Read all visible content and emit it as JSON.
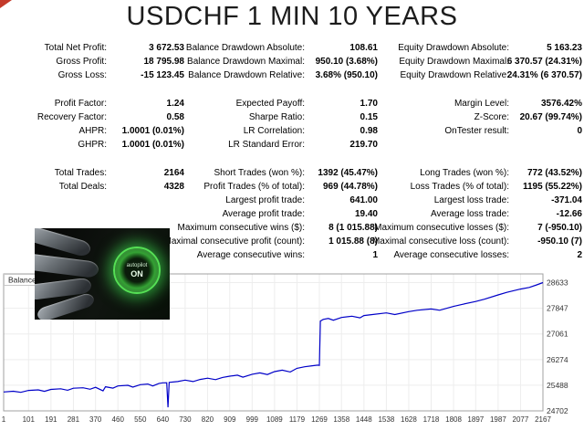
{
  "title": "USDCHF 1 MIN 10 YEARS",
  "photo": {
    "line1": "autopilot",
    "line2": "ON"
  },
  "stats": {
    "groups": [
      {
        "rows": [
          [
            "Total Net Profit:",
            "3 672.53",
            "Balance Drawdown Absolute:",
            "108.61",
            "Equity Drawdown Absolute:",
            "5 163.23"
          ],
          [
            "Gross Profit:",
            "18 795.98",
            "Balance Drawdown Maximal:",
            "950.10 (3.68%)",
            "Equity Drawdown Maximal:",
            "6 370.57 (24.31%)"
          ],
          [
            "Gross Loss:",
            "-15 123.45",
            "Balance Drawdown Relative:",
            "3.68% (950.10)",
            "Equity Drawdown Relative:",
            "24.31% (6 370.57)"
          ]
        ]
      },
      {
        "rows": [
          [
            "Profit Factor:",
            "1.24",
            "Expected Payoff:",
            "1.70",
            "Margin Level:",
            "3576.42%"
          ],
          [
            "Recovery Factor:",
            "0.58",
            "Sharpe Ratio:",
            "0.15",
            "Z-Score:",
            "20.67 (99.74%)"
          ],
          [
            "AHPR:",
            "1.0001 (0.01%)",
            "LR Correlation:",
            "0.98",
            "OnTester result:",
            "0"
          ],
          [
            "GHPR:",
            "1.0001 (0.01%)",
            "LR Standard Error:",
            "219.70",
            "",
            ""
          ]
        ]
      },
      {
        "rows": [
          [
            "Total Trades:",
            "2164",
            "Short Trades (won %):",
            "1392 (45.47%)",
            "Long Trades (won %):",
            "772 (43.52%)"
          ],
          [
            "Total Deals:",
            "4328",
            "Profit Trades (% of total):",
            "969 (44.78%)",
            "Loss Trades (% of total):",
            "1195 (55.22%)"
          ],
          [
            "",
            "",
            "Largest profit trade:",
            "641.00",
            "Largest loss trade:",
            "-371.04"
          ],
          [
            "",
            "",
            "Average profit trade:",
            "19.40",
            "Average loss trade:",
            "-12.66"
          ],
          [
            "",
            "",
            "Maximum consecutive wins ($):",
            "8 (1 015.88)",
            "Maximum consecutive losses ($):",
            "7 (-950.10)"
          ],
          [
            "",
            "",
            "Maximal consecutive profit (count):",
            "1 015.88 (8)",
            "Maximal consecutive loss (count):",
            "-950.10 (7)"
          ],
          [
            "",
            "",
            "Average consecutive wins:",
            "1",
            "Average consecutive losses:",
            "2"
          ]
        ]
      }
    ]
  },
  "chart_data": {
    "type": "line",
    "title": "",
    "legend": "Balance",
    "line_color": "#0000c8",
    "grid_color": "#ededed",
    "border_color": "#a0a0a0",
    "xlim": [
      1,
      2167
    ],
    "ylim": [
      24702,
      28900
    ],
    "x_ticks": [
      "1",
      "101",
      "191",
      "281",
      "370",
      "460",
      "550",
      "640",
      "730",
      "820",
      "909",
      "999",
      "1089",
      "1179",
      "1269",
      "1358",
      "1448",
      "1538",
      "1628",
      "1718",
      "1808",
      "1897",
      "1987",
      "2077",
      "2167"
    ],
    "y_ticks": [
      "28633",
      "27847",
      "27061",
      "26274",
      "25488",
      "24702"
    ],
    "points": [
      [
        1,
        25280
      ],
      [
        40,
        25305
      ],
      [
        70,
        25270
      ],
      [
        101,
        25330
      ],
      [
        140,
        25345
      ],
      [
        165,
        25300
      ],
      [
        191,
        25360
      ],
      [
        230,
        25380
      ],
      [
        258,
        25335
      ],
      [
        281,
        25395
      ],
      [
        320,
        25410
      ],
      [
        348,
        25365
      ],
      [
        370,
        25425
      ],
      [
        400,
        25315
      ],
      [
        410,
        25440
      ],
      [
        440,
        25400
      ],
      [
        460,
        25465
      ],
      [
        500,
        25485
      ],
      [
        520,
        25430
      ],
      [
        550,
        25505
      ],
      [
        580,
        25525
      ],
      [
        600,
        25465
      ],
      [
        625,
        25545
      ],
      [
        640,
        25560
      ],
      [
        656,
        25565
      ],
      [
        661,
        24810
      ],
      [
        666,
        25575
      ],
      [
        700,
        25600
      ],
      [
        730,
        25645
      ],
      [
        762,
        25600
      ],
      [
        790,
        25665
      ],
      [
        820,
        25705
      ],
      [
        852,
        25660
      ],
      [
        880,
        25725
      ],
      [
        909,
        25765
      ],
      [
        940,
        25795
      ],
      [
        962,
        25735
      ],
      [
        999,
        25825
      ],
      [
        1030,
        25865
      ],
      [
        1060,
        25815
      ],
      [
        1089,
        25905
      ],
      [
        1120,
        25950
      ],
      [
        1152,
        25895
      ],
      [
        1179,
        26005
      ],
      [
        1210,
        26055
      ],
      [
        1240,
        26085
      ],
      [
        1263,
        26105
      ],
      [
        1269,
        26095
      ],
      [
        1273,
        27455
      ],
      [
        1285,
        27505
      ],
      [
        1305,
        27535
      ],
      [
        1325,
        27480
      ],
      [
        1358,
        27565
      ],
      [
        1400,
        27605
      ],
      [
        1432,
        27555
      ],
      [
        1448,
        27625
      ],
      [
        1482,
        27655
      ],
      [
        1538,
        27705
      ],
      [
        1572,
        27655
      ],
      [
        1628,
        27745
      ],
      [
        1662,
        27785
      ],
      [
        1718,
        27825
      ],
      [
        1752,
        27785
      ],
      [
        1808,
        27905
      ],
      [
        1842,
        27965
      ],
      [
        1897,
        28055
      ],
      [
        1932,
        28125
      ],
      [
        1987,
        28255
      ],
      [
        2022,
        28335
      ],
      [
        2077,
        28435
      ],
      [
        2112,
        28485
      ],
      [
        2142,
        28565
      ],
      [
        2167,
        28633
      ]
    ]
  }
}
